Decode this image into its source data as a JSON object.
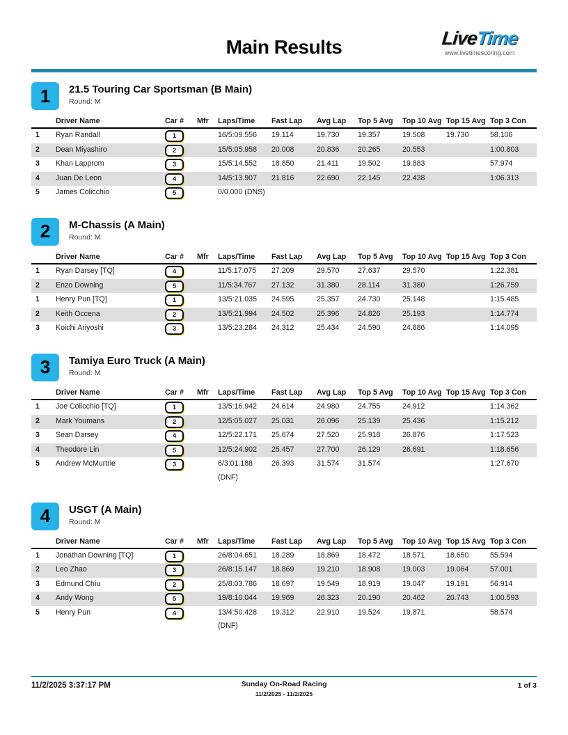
{
  "header": {
    "title": "Main Results",
    "logo_live": "Live",
    "logo_time": "Time",
    "logo_url": "www.livetimescoring.com"
  },
  "colors": {
    "accent_teal": "#1e8cad",
    "badge_cyan": "#27b3e8",
    "row_alt_gray": "#dedede",
    "logo_blue": "#2aa3e0"
  },
  "columns": [
    "Driver Name",
    "Car #",
    "Mfr",
    "Laps/Time",
    "Fast Lap",
    "Avg Lap",
    "Top 5 Avg",
    "Top 10 Avg",
    "Top 15 Avg",
    "Top 3 Con"
  ],
  "sections": [
    {
      "number": "1",
      "title": "21.5 Touring Car Sportsman (B Main)",
      "round": "Round: M",
      "rows": [
        {
          "pos": "1",
          "driver": "Ryan Randall",
          "car": "1",
          "mfr": "",
          "laps": "16/5:09.556",
          "laps2": "",
          "fast": "19.114",
          "avg": "19.730",
          "top5": "19.357",
          "top10": "19.508",
          "top15": "19.730",
          "top3": "58.106"
        },
        {
          "pos": "2",
          "driver": "Dean Miyashiro",
          "car": "2",
          "mfr": "",
          "laps": "15/5:05.958",
          "laps2": "",
          "fast": "20.008",
          "avg": "20.836",
          "top5": "20.265",
          "top10": "20.553",
          "top15": "",
          "top3": "1:00.803"
        },
        {
          "pos": "3",
          "driver": "Khan Lapprom",
          "car": "3",
          "mfr": "",
          "laps": "15/5:14.552",
          "laps2": "",
          "fast": "18.850",
          "avg": "21.411",
          "top5": "19.502",
          "top10": "19.883",
          "top15": "",
          "top3": "57.974"
        },
        {
          "pos": "4",
          "driver": "Juan De Leon",
          "car": "4",
          "mfr": "",
          "laps": "14/5:13.907",
          "laps2": "",
          "fast": "21.816",
          "avg": "22.690",
          "top5": "22.145",
          "top10": "22.438",
          "top15": "",
          "top3": "1:06.313"
        },
        {
          "pos": "5",
          "driver": "James Colicchio",
          "car": "5",
          "mfr": "",
          "laps": "0/0.000 (DNS)",
          "laps2": "",
          "fast": "",
          "avg": "",
          "top5": "",
          "top10": "",
          "top15": "",
          "top3": ""
        }
      ]
    },
    {
      "number": "2",
      "title": "M-Chassis (A Main)",
      "round": "Round: M",
      "rows": [
        {
          "pos": "1",
          "driver": "Ryan Darsey [TQ]",
          "car": "4",
          "mfr": "",
          "laps": "11/5:17.075",
          "laps2": "",
          "fast": "27.209",
          "avg": "29.570",
          "top5": "27.637",
          "top10": "29.570",
          "top15": "",
          "top3": "1:22.381"
        },
        {
          "pos": "2",
          "driver": "Enzo Downing",
          "car": "5",
          "mfr": "",
          "laps": "11/5:34.767",
          "laps2": "",
          "fast": "27.132",
          "avg": "31.380",
          "top5": "28.114",
          "top10": "31.380",
          "top15": "",
          "top3": "1:26.759"
        },
        {
          "pos": "1",
          "driver": "Henry Pun [TQ]",
          "car": "1",
          "mfr": "",
          "laps": "13/5:21.035",
          "laps2": "",
          "fast": "24.595",
          "avg": "25.357",
          "top5": "24.730",
          "top10": "25.148",
          "top15": "",
          "top3": "1:15.485"
        },
        {
          "pos": "2",
          "driver": "Keith Occena",
          "car": "2",
          "mfr": "",
          "laps": "13/5:21.994",
          "laps2": "",
          "fast": "24.502",
          "avg": "25.396",
          "top5": "24.826",
          "top10": "25.193",
          "top15": "",
          "top3": "1:14.774"
        },
        {
          "pos": "3",
          "driver": "Koichi Ariyoshi",
          "car": "3",
          "mfr": "",
          "laps": "13/5:23.284",
          "laps2": "",
          "fast": "24.312",
          "avg": "25.434",
          "top5": "24.590",
          "top10": "24.886",
          "top15": "",
          "top3": "1:14.095"
        }
      ]
    },
    {
      "number": "3",
      "title": "Tamiya Euro Truck (A Main)",
      "round": "Round: M",
      "rows": [
        {
          "pos": "1",
          "driver": "Joe Colicchio [TQ]",
          "car": "1",
          "mfr": "",
          "laps": "13/5:16.942",
          "laps2": "",
          "fast": "24.614",
          "avg": "24.980",
          "top5": "24.755",
          "top10": "24.912",
          "top15": "",
          "top3": "1:14.362"
        },
        {
          "pos": "2",
          "driver": "Mark Youmans",
          "car": "2",
          "mfr": "",
          "laps": "12/5:05.027",
          "laps2": "",
          "fast": "25.031",
          "avg": "26.096",
          "top5": "25.139",
          "top10": "25.436",
          "top15": "",
          "top3": "1:15.212"
        },
        {
          "pos": "3",
          "driver": "Sean Darsey",
          "car": "4",
          "mfr": "",
          "laps": "12/5:22.171",
          "laps2": "",
          "fast": "25.674",
          "avg": "27.520",
          "top5": "25.918",
          "top10": "26.876",
          "top15": "",
          "top3": "1:17.523"
        },
        {
          "pos": "4",
          "driver": "Theodore Lin",
          "car": "5",
          "mfr": "",
          "laps": "12/5:24.902",
          "laps2": "",
          "fast": "25.457",
          "avg": "27.700",
          "top5": "26.129",
          "top10": "26.691",
          "top15": "",
          "top3": "1:18.656"
        },
        {
          "pos": "5",
          "driver": "Andrew McMurtrie",
          "car": "3",
          "mfr": "",
          "laps": "6/3:01.188",
          "laps2": "(DNF)",
          "fast": "26.393",
          "avg": "31.574",
          "top5": "31.574",
          "top10": "",
          "top15": "",
          "top3": "1:27.670"
        }
      ]
    },
    {
      "number": "4",
      "title": "USGT (A Main)",
      "round": "Round: M",
      "rows": [
        {
          "pos": "1",
          "driver": "Jonathan Downing [TQ]",
          "car": "1",
          "mfr": "",
          "laps": "26/8:04.651",
          "laps2": "",
          "fast": "18.289",
          "avg": "18.869",
          "top5": "18.472",
          "top10": "18.571",
          "top15": "18.650",
          "top3": "55.594"
        },
        {
          "pos": "2",
          "driver": "Leo Zhao",
          "car": "3",
          "mfr": "",
          "laps": "26/8:15.147",
          "laps2": "",
          "fast": "18.869",
          "avg": "19.210",
          "top5": "18.908",
          "top10": "19.003",
          "top15": "19.064",
          "top3": "57.001"
        },
        {
          "pos": "3",
          "driver": "Edmund Chiu",
          "car": "2",
          "mfr": "",
          "laps": "25/8:03.786",
          "laps2": "",
          "fast": "18.697",
          "avg": "19.549",
          "top5": "18.919",
          "top10": "19.047",
          "top15": "19.191",
          "top3": "56.914"
        },
        {
          "pos": "4",
          "driver": "Andy Wong",
          "car": "5",
          "mfr": "",
          "laps": "19/8:10.044",
          "laps2": "",
          "fast": "19.969",
          "avg": "26.323",
          "top5": "20.190",
          "top10": "20.462",
          "top15": "20.743",
          "top3": "1:00.593"
        },
        {
          "pos": "5",
          "driver": "Henry Pun",
          "car": "4",
          "mfr": "",
          "laps": "13/4:50.428",
          "laps2": "(DNF)",
          "fast": "19.312",
          "avg": "22.910",
          "top5": "19.524",
          "top10": "19.871",
          "top15": "",
          "top3": "58.574"
        }
      ]
    }
  ],
  "footer": {
    "timestamp": "11/2/2025 3:37:17 PM",
    "event": "Sunday On-Road Racing",
    "dates": "11/2/2025 - 11/2/2025",
    "page": "1 of 3"
  }
}
